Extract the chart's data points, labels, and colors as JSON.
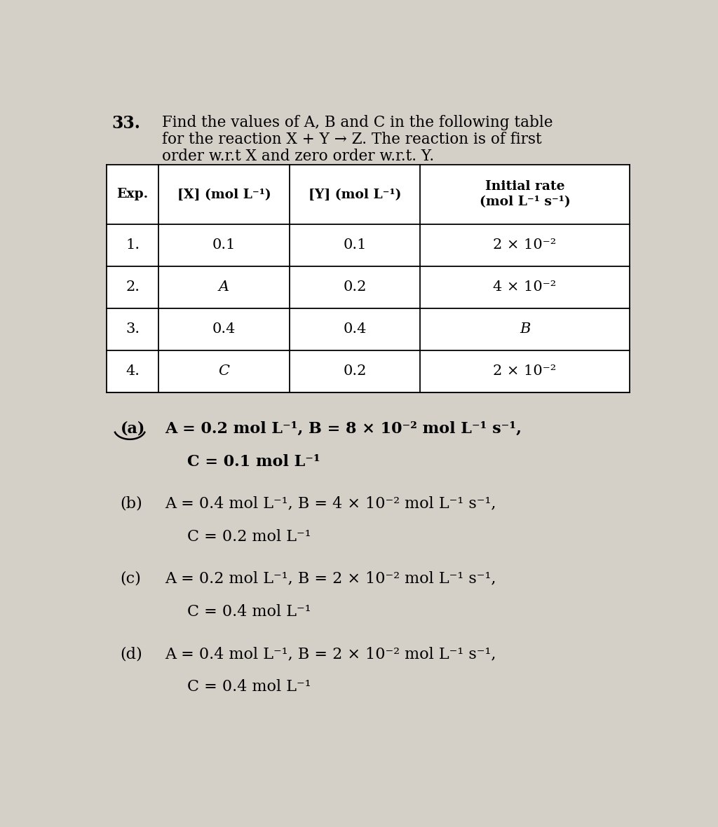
{
  "bg_color": "#d4cfc7",
  "question_number": "33.",
  "title_line1": "Find the values of A, B and C in the following table",
  "title_line2": "for the reaction X + Y → Z. The reaction is of first",
  "title_line3": "order w.r.t X and zero order w.r.t. Y.",
  "table_headers": [
    "Exp.",
    "[X] (mol L⁻¹)",
    "[Y] (mol L⁻¹)",
    "Initial rate\n(mol L⁻¹ s⁻¹)"
  ],
  "table_data": [
    [
      "1.",
      "0.1",
      "0.1",
      "2 × 10⁻²"
    ],
    [
      "2.",
      "A",
      "0.2",
      "4 × 10⁻²"
    ],
    [
      "3.",
      "0.4",
      "0.4",
      "B"
    ],
    [
      "4.",
      "C",
      "0.2",
      "2 × 10⁻²"
    ]
  ],
  "option_labels": [
    "(a)",
    "(b)",
    "(c)",
    "(d)"
  ],
  "option_lines1": [
    "A = 0.2 mol L⁻¹, B = 8 × 10⁻² mol L⁻¹ s⁻¹,",
    "A = 0.4 mol L⁻¹, B = 4 × 10⁻² mol L⁻¹ s⁻¹,",
    "A = 0.2 mol L⁻¹, B = 2 × 10⁻² mol L⁻¹ s⁻¹,",
    "A = 0.4 mol L⁻¹, B = 2 × 10⁻² mol L⁻¹ s⁻¹,"
  ],
  "option_lines2": [
    "C = 0.1 mol L⁻¹",
    "C = 0.2 mol L⁻¹",
    "C = 0.4 mol L⁻¹",
    "C = 0.4 mol L⁻¹"
  ],
  "option_bold": [
    true,
    false,
    false,
    false
  ]
}
